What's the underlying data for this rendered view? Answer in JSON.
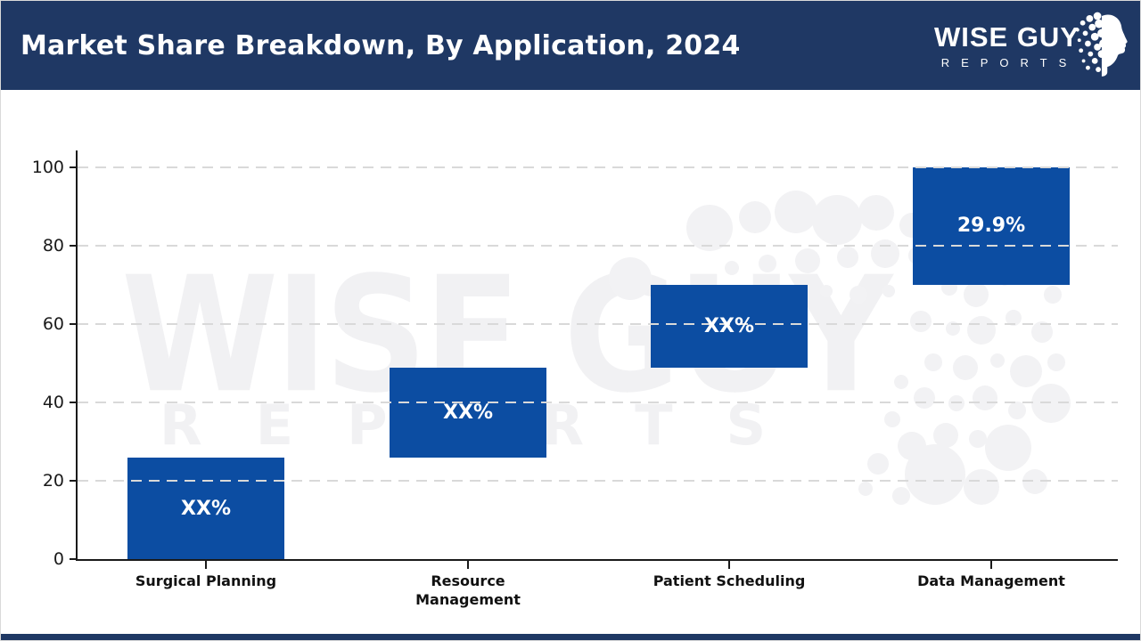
{
  "header": {
    "title": "Market Share Breakdown, By Application, 2024",
    "logo": {
      "name": "WISE GUY",
      "tagline": "REPORTS"
    }
  },
  "watermark": {
    "name": "WISE GUY",
    "tagline": "REPORTS"
  },
  "footer": {},
  "chart_data": {
    "type": "bar",
    "subtype": "floating-waterfall",
    "title": "Market Share Breakdown, By Application, 2024",
    "categories": [
      "Surgical Planning",
      "Resource Management",
      "Patient Scheduling",
      "Data Management"
    ],
    "segments": [
      {
        "category": "Surgical Planning",
        "category_lines": [
          "Surgical Planning"
        ],
        "start": 0,
        "end": 25.8,
        "value": 25.8,
        "value_label": "XX%"
      },
      {
        "category": "Resource Management",
        "category_lines": [
          "Resource",
          "Management"
        ],
        "start": 25.8,
        "end": 48.9,
        "value": 23.1,
        "value_label": "XX%"
      },
      {
        "category": "Patient Scheduling",
        "category_lines": [
          "Patient Scheduling"
        ],
        "start": 48.9,
        "end": 70.1,
        "value": 21.2,
        "value_label": "XX%"
      },
      {
        "category": "Data Management",
        "category_lines": [
          "Data Management"
        ],
        "start": 70.1,
        "end": 100,
        "value": 29.9,
        "value_label": "29.9%"
      }
    ],
    "ylim": [
      0,
      100
    ],
    "yticks": [
      0,
      20,
      40,
      60,
      80,
      100
    ],
    "xlabel": "",
    "ylabel": "",
    "grid": {
      "horizontal": true,
      "style": "dashed",
      "above_bars": true
    },
    "legend": null,
    "colors": {
      "bar": "#0c4da2",
      "bar_label": "#ffffff",
      "header_band": "#1f3864",
      "grid": "#d9d9d9",
      "axis": "#1a1a1a",
      "watermark": "#f1f1f3"
    }
  }
}
